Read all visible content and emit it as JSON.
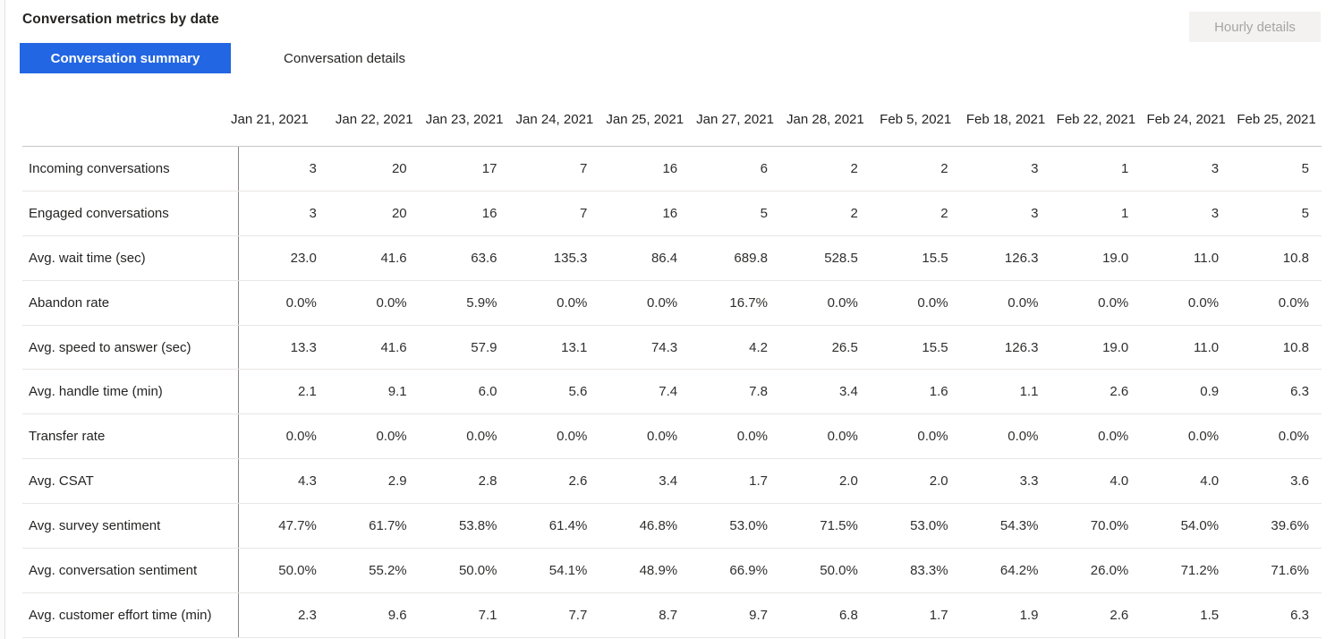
{
  "header": {
    "title": "Conversation metrics by date",
    "hourly_details_label": "Hourly details"
  },
  "tabs": [
    {
      "label": "Conversation summary",
      "active": true
    },
    {
      "label": "Conversation details",
      "active": false
    }
  ],
  "colors": {
    "accent_blue": "#2266E3",
    "active_tab_text": "#ffffff",
    "disabled_button_bg": "#f3f2f1",
    "disabled_button_text": "#a7a5a3",
    "header_border": "#c8c6c4",
    "row_border": "#e9e7e5",
    "label_divider": "#8a8886",
    "text": "#252423"
  },
  "table": {
    "columns": [
      "Jan 21, 2021",
      "Jan 22, 2021",
      "Jan 23, 2021",
      "Jan 24, 2021",
      "Jan 25, 2021",
      "Jan 27, 2021",
      "Jan 28, 2021",
      "Feb 5, 2021",
      "Feb 18, 2021",
      "Feb 22, 2021",
      "Feb 24, 2021",
      "Feb 25, 2021"
    ],
    "rows": [
      {
        "label": "Incoming conversations",
        "values": [
          "3",
          "20",
          "17",
          "7",
          "16",
          "6",
          "2",
          "2",
          "3",
          "1",
          "3",
          "5"
        ]
      },
      {
        "label": "Engaged conversations",
        "values": [
          "3",
          "20",
          "16",
          "7",
          "16",
          "5",
          "2",
          "2",
          "3",
          "1",
          "3",
          "5"
        ]
      },
      {
        "label": "Avg. wait time (sec)",
        "values": [
          "23.0",
          "41.6",
          "63.6",
          "135.3",
          "86.4",
          "689.8",
          "528.5",
          "15.5",
          "126.3",
          "19.0",
          "11.0",
          "10.8"
        ]
      },
      {
        "label": "Abandon rate",
        "values": [
          "0.0%",
          "0.0%",
          "5.9%",
          "0.0%",
          "0.0%",
          "16.7%",
          "0.0%",
          "0.0%",
          "0.0%",
          "0.0%",
          "0.0%",
          "0.0%"
        ]
      },
      {
        "label": "Avg. speed to answer (sec)",
        "values": [
          "13.3",
          "41.6",
          "57.9",
          "13.1",
          "74.3",
          "4.2",
          "26.5",
          "15.5",
          "126.3",
          "19.0",
          "11.0",
          "10.8"
        ]
      },
      {
        "label": "Avg. handle time (min)",
        "values": [
          "2.1",
          "9.1",
          "6.0",
          "5.6",
          "7.4",
          "7.8",
          "3.4",
          "1.6",
          "1.1",
          "2.6",
          "0.9",
          "6.3"
        ]
      },
      {
        "label": "Transfer rate",
        "values": [
          "0.0%",
          "0.0%",
          "0.0%",
          "0.0%",
          "0.0%",
          "0.0%",
          "0.0%",
          "0.0%",
          "0.0%",
          "0.0%",
          "0.0%",
          "0.0%"
        ]
      },
      {
        "label": "Avg. CSAT",
        "values": [
          "4.3",
          "2.9",
          "2.8",
          "2.6",
          "3.4",
          "1.7",
          "2.0",
          "2.0",
          "3.3",
          "4.0",
          "4.0",
          "3.6"
        ]
      },
      {
        "label": "Avg. survey sentiment",
        "values": [
          "47.7%",
          "61.7%",
          "53.8%",
          "61.4%",
          "46.8%",
          "53.0%",
          "71.5%",
          "53.0%",
          "54.3%",
          "70.0%",
          "54.0%",
          "39.6%"
        ]
      },
      {
        "label": "Avg. conversation sentiment",
        "values": [
          "50.0%",
          "55.2%",
          "50.0%",
          "54.1%",
          "48.9%",
          "66.9%",
          "50.0%",
          "83.3%",
          "64.2%",
          "26.0%",
          "71.2%",
          "71.6%"
        ]
      },
      {
        "label": "Avg. customer effort time (min)",
        "values": [
          "2.3",
          "9.6",
          "7.1",
          "7.7",
          "8.7",
          "9.7",
          "6.8",
          "1.7",
          "1.9",
          "2.6",
          "1.5",
          "6.3"
        ]
      }
    ]
  }
}
